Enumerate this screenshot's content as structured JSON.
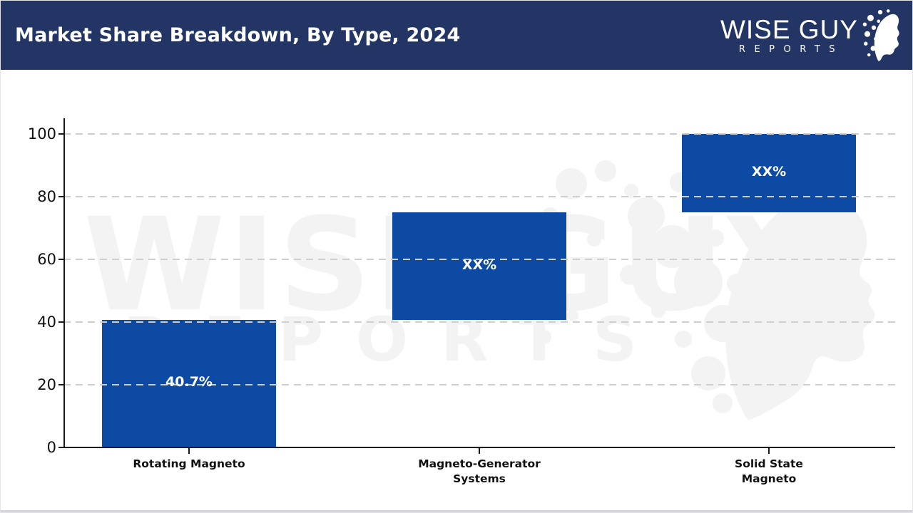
{
  "header": {
    "title": "Market Share Breakdown, By Type, 2024",
    "background_color": "#233564",
    "logo": {
      "name": "WISE GUY",
      "sub": "REPORTS",
      "icon": "dotted-head-profile"
    }
  },
  "watermark": {
    "line1": "WISE GUY",
    "line2": "REPORTS",
    "icon": "dotted-head-profile",
    "color": "#f3f3f4"
  },
  "chart_data": {
    "type": "bar",
    "subtype": "floating-segment-waterfall",
    "title": "Market Share Breakdown, By Type, 2024",
    "categories": [
      [
        "Rotating Magneto"
      ],
      [
        "Magneto-Generator",
        "Systems"
      ],
      [
        "Solid State",
        "Magneto"
      ]
    ],
    "bars": [
      {
        "from": 0,
        "to": 40.7,
        "label": "40.7%"
      },
      {
        "from": 40.7,
        "to": 74.9,
        "label": "XX%"
      },
      {
        "from": 74.9,
        "to": 100,
        "label": "XX%"
      }
    ],
    "ylim": [
      0,
      100
    ],
    "yticks": [
      0,
      20,
      40,
      60,
      80,
      100
    ],
    "xlabel": "",
    "ylabel": "",
    "legend": "none",
    "grid": {
      "axis": "y",
      "style": "dashed",
      "drawn_above_bars": true,
      "color": "#cfcfd2"
    },
    "bar_color": "#0c4aa4",
    "value_label_color": "#ffffff",
    "axis_color": "#1a1a1a",
    "tick_label_color": "#111111"
  }
}
